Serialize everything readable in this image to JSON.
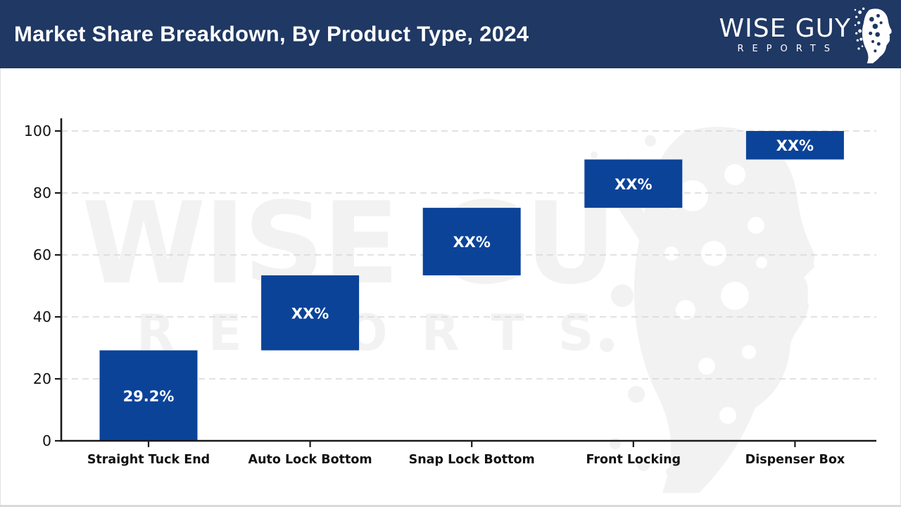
{
  "header": {
    "title": "Market Share Breakdown, By Product Type, 2024",
    "logo": {
      "wordmark": "WISE GUY",
      "subtext": "REPORTS"
    }
  },
  "watermark": {
    "wordmark": "WISE GUY",
    "subtext": "REPORTS"
  },
  "chart_data": {
    "type": "bar",
    "subtype": "waterfall",
    "title": "Market Share Breakdown, By Product Type, 2024",
    "categories": [
      "Straight Tuck End",
      "Auto Lock Bottom",
      "Snap Lock Bottom",
      "Front Locking",
      "Dispenser Box"
    ],
    "segments": [
      {
        "category": "Straight Tuck End",
        "start": 0,
        "end": 29.2,
        "label": "29.2%"
      },
      {
        "category": "Auto Lock Bottom",
        "start": 29.2,
        "end": 53.4,
        "label": "XX%"
      },
      {
        "category": "Snap Lock Bottom",
        "start": 53.4,
        "end": 75.2,
        "label": "XX%"
      },
      {
        "category": "Front Locking",
        "start": 75.2,
        "end": 90.8,
        "label": "XX%"
      },
      {
        "category": "Dispenser Box",
        "start": 90.8,
        "end": 100,
        "label": "XX%"
      }
    ],
    "yticks": [
      0,
      20,
      40,
      60,
      80,
      100
    ],
    "ylim": [
      0,
      104
    ],
    "xlabel": "",
    "ylabel": "",
    "grid": "horizontal-dashed",
    "legend": "none"
  },
  "colors": {
    "header_bg": "#1f3864",
    "bar": "#0b4399",
    "bar_label": "#ffffff",
    "grid": "#d8d8d8",
    "axis": "#1a1a1a",
    "tick_label": "#111111",
    "watermark": "#f2f2f2",
    "bottom_line": "#d9d9d9"
  }
}
